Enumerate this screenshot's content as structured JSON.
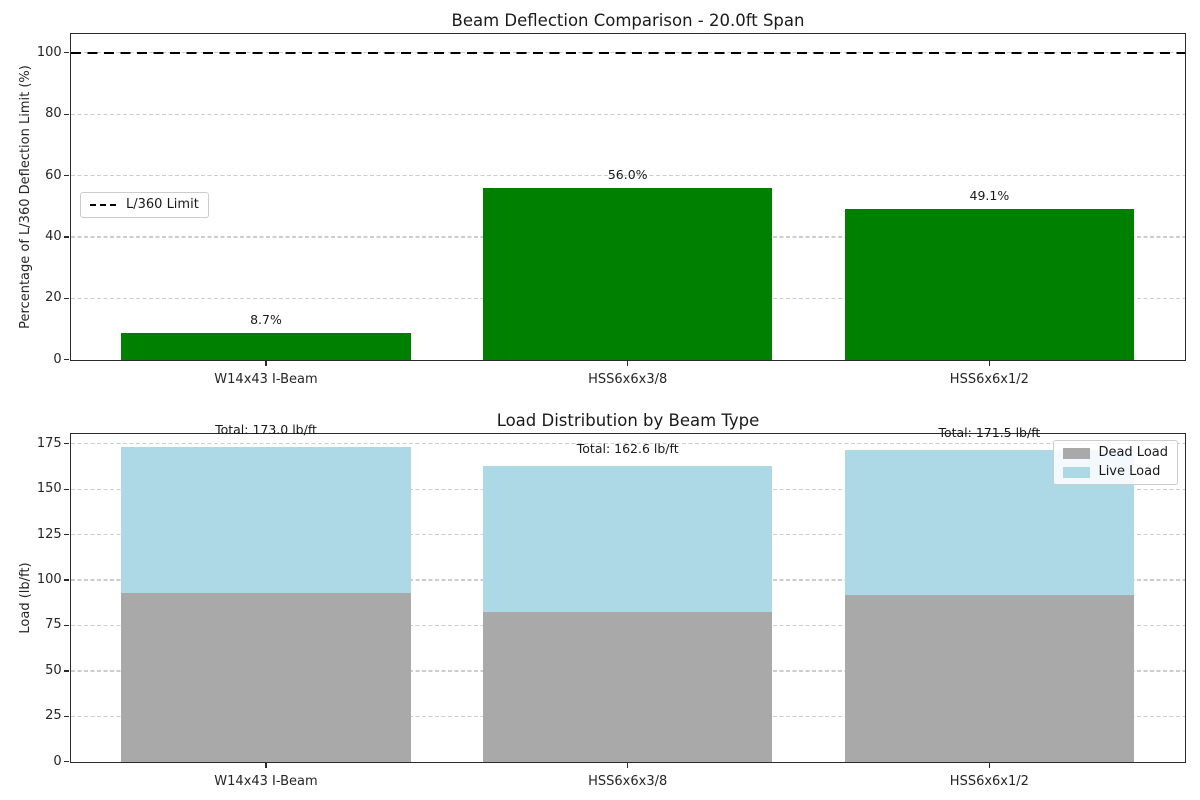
{
  "figure": {
    "background": "#ffffff",
    "accent_green": "#008000",
    "dead_load_gray": "#a9a9a9",
    "live_load_blue": "#add8e6"
  },
  "chart_data": [
    {
      "type": "bar",
      "title": "Beam Deflection Comparison - 20.0ft Span",
      "ylabel": "Percentage of L/360 Deflection Limit (%)",
      "xlabel": "",
      "categories": [
        "W14x43 I-Beam",
        "HSS6x6x3/8",
        "HSS6x6x1/2"
      ],
      "values": [
        8.7,
        56.0,
        49.1
      ],
      "value_labels": [
        "8.7%",
        "56.0%",
        "49.1%"
      ],
      "bar_color": "#008000",
      "yticks": [
        0,
        20,
        40,
        60,
        80,
        100
      ],
      "ylim": [
        0,
        106.2
      ],
      "grid": true,
      "ref_line": {
        "value": 100,
        "label": "L/360 Limit",
        "color": "#000000",
        "style": "dashed"
      },
      "legend_position": "center-left",
      "legend": [
        {
          "label": "L/360 Limit",
          "swatch": "dashed-line",
          "color": "#000000"
        }
      ]
    },
    {
      "type": "stacked-bar",
      "title": "Load Distribution by Beam Type",
      "ylabel": "Load (lb/ft)",
      "xlabel": "",
      "categories": [
        "W14x43 I-Beam",
        "HSS6x6x3/8",
        "HSS6x6x1/2"
      ],
      "series": [
        {
          "name": "Dead Load",
          "color": "#a9a9a9",
          "values": [
            93.0,
            82.6,
            91.5
          ]
        },
        {
          "name": "Live Load",
          "color": "#add8e6",
          "values": [
            80.0,
            80.0,
            80.0
          ]
        }
      ],
      "totals": [
        173.0,
        162.6,
        171.5
      ],
      "total_labels": [
        "Total: 173.0 lb/ft",
        "Total: 162.6 lb/ft",
        "Total: 171.5 lb/ft"
      ],
      "yticks": [
        0,
        25,
        50,
        75,
        100,
        125,
        150,
        175
      ],
      "ylim": [
        0,
        180.5
      ],
      "grid": true,
      "legend_position": "upper-right",
      "legend": [
        {
          "label": "Dead Load",
          "swatch": "patch",
          "color": "#a9a9a9"
        },
        {
          "label": "Live Load",
          "swatch": "patch",
          "color": "#add8e6"
        }
      ]
    }
  ]
}
